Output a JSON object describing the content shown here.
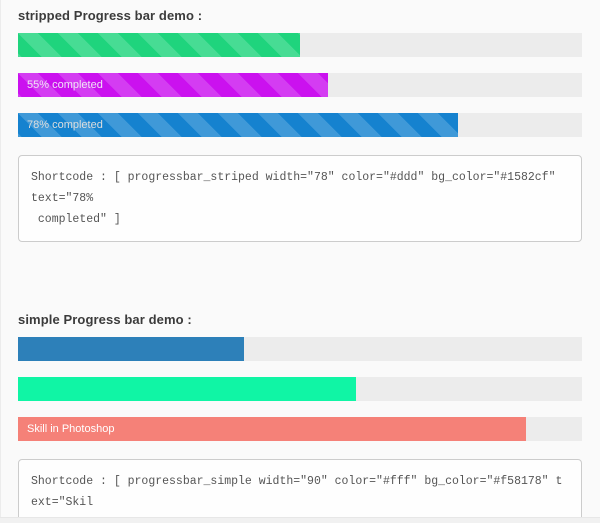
{
  "page": {
    "background": "#fafafa",
    "track_color": "#ececec"
  },
  "striped_section": {
    "heading": "stripped Progress bar demo :",
    "bars": [
      {
        "name": "striped-bar-green",
        "label": "",
        "width_pct": 50,
        "bar_color": "#1fd47d",
        "text_color": "#ffffff"
      },
      {
        "name": "striped-bar-magenta",
        "label": "55% completed",
        "width_pct": 55,
        "bar_color": "#cb11ef",
        "text_color": "#f0e4f6"
      },
      {
        "name": "striped-bar-blue",
        "label": "78% completed",
        "width_pct": 78,
        "bar_color": "#1582cf",
        "text_color": "#dddddd"
      }
    ],
    "shortcode": "Shortcode : [ progressbar_striped width=\"78\" color=\"#ddd\" bg_color=\"#1582cf\" text=\"78%\n completed\" ]"
  },
  "simple_section": {
    "heading": "simple Progress bar demo :",
    "bars": [
      {
        "name": "simple-bar-blue",
        "label": "",
        "width_pct": 40,
        "bar_color": "#2d80b9",
        "text_color": "#ffffff"
      },
      {
        "name": "simple-bar-green",
        "label": "",
        "width_pct": 60,
        "bar_color": "#10f5a5",
        "text_color": "#ffffff"
      },
      {
        "name": "simple-bar-salmon",
        "label": "Skill in Photoshop",
        "width_pct": 90,
        "bar_color": "#f58178",
        "text_color": "#ffffff"
      }
    ],
    "shortcode": "Shortcode : [ progressbar_simple width=\"90\" color=\"#fff\" bg_color=\"#f58178\" text=\"Skil\nl in Photoshop\" ]"
  }
}
